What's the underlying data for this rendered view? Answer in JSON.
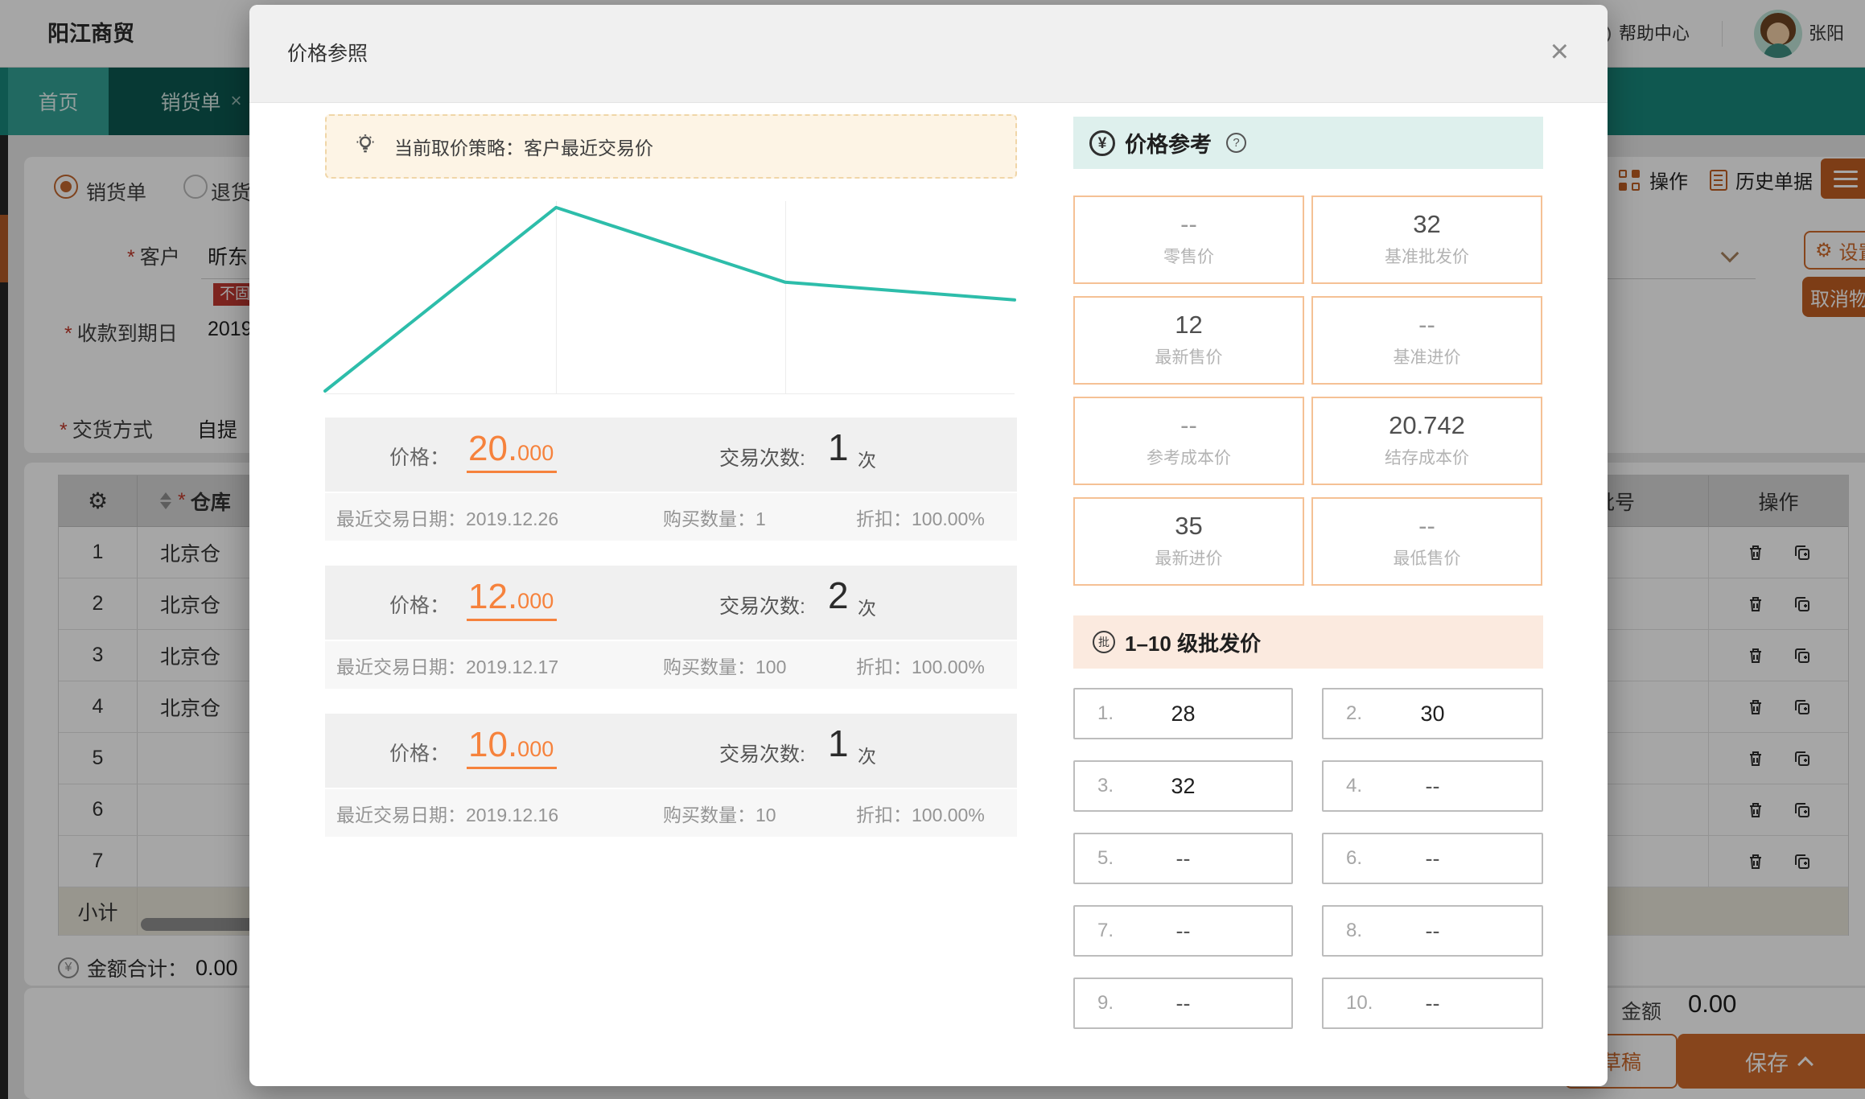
{
  "colors": {
    "brand_teal": "#17887b",
    "accent_orange": "#cf6a2c",
    "price_orange": "#f6823c",
    "chart_teal": "#2dbdaa",
    "ref_card_border": "#f5c195"
  },
  "app": {
    "brand": "阳江商贸",
    "topbar": {
      "help": "帮助中心",
      "user": "张阳"
    },
    "tabs": [
      {
        "label": "首页"
      },
      {
        "label": "销货单",
        "close": "×"
      }
    ],
    "toolbar": {
      "ops": "操作",
      "history": "历史单据",
      "settings_icon": "⚙",
      "settings": "设置",
      "cancel_logistics": "取消物流"
    },
    "form": {
      "radio_sale": "销货单",
      "radio_return": "退货单",
      "customer_label": "客户",
      "customer_value": "昕东贸",
      "price_tag": "不固定",
      "due_label": "收款到期日",
      "due_value": "2019",
      "delivery_label": "交货方式",
      "delivery_value": "自提"
    },
    "table": {
      "gear_icon": "⚙",
      "warehouse_header": "仓库",
      "batch_header": "批号",
      "ops_header": "操作",
      "rows": [
        {
          "n": "1",
          "wh": "北京仓"
        },
        {
          "n": "2",
          "wh": "北京仓"
        },
        {
          "n": "3",
          "wh": "北京仓"
        },
        {
          "n": "4",
          "wh": "北京仓"
        },
        {
          "n": "5",
          "wh": ""
        },
        {
          "n": "6",
          "wh": ""
        },
        {
          "n": "7",
          "wh": ""
        }
      ],
      "subtotal": "小计",
      "total_label": "金额合计：",
      "total_value": "0.00",
      "yen": "¥"
    },
    "footer": {
      "amount_label": "金额",
      "amount_value": "0.00",
      "draft": "草稿",
      "save": "保存"
    }
  },
  "modal": {
    "title": "价格参照",
    "close": "×",
    "strategy": "当前取价策略：客户最近交易价",
    "deals": [
      {
        "price_label": "价格：",
        "int": "20.",
        "dec": "000",
        "count_label": "交易次数:",
        "count": "1",
        "unit": "次",
        "date_label": "最近交易日期：",
        "date": "2019.12.26",
        "qty_label": "购买数量：",
        "qty": "1",
        "disc_label": "折扣：",
        "disc": "100.00%"
      },
      {
        "price_label": "价格：",
        "int": "12.",
        "dec": "000",
        "count_label": "交易次数:",
        "count": "2",
        "unit": "次",
        "date_label": "最近交易日期：",
        "date": "2019.12.17",
        "qty_label": "购买数量：",
        "qty": "100",
        "disc_label": "折扣：",
        "disc": "100.00%"
      },
      {
        "price_label": "价格：",
        "int": "10.",
        "dec": "000",
        "count_label": "交易次数:",
        "count": "1",
        "unit": "次",
        "date_label": "最近交易日期：",
        "date": "2019.12.16",
        "qty_label": "购买数量：",
        "qty": "10",
        "disc_label": "折扣：",
        "disc": "100.00%"
      }
    ],
    "ref": {
      "yen": "¥",
      "title": "价格参考",
      "help": "?",
      "cards": [
        {
          "value": "--",
          "label": "零售价"
        },
        {
          "value": "32",
          "label": "基准批发价"
        },
        {
          "value": "12",
          "label": "最新售价"
        },
        {
          "value": "--",
          "label": "基准进价"
        },
        {
          "value": "--",
          "label": "参考成本价"
        },
        {
          "value": "20.742",
          "label": "结存成本价"
        },
        {
          "value": "35",
          "label": "最新进价"
        },
        {
          "value": "--",
          "label": "最低售价"
        }
      ]
    },
    "wholesale": {
      "icon": "批",
      "title": "1–10 级批发价",
      "items": [
        {
          "n": "1.",
          "v": "28"
        },
        {
          "n": "2.",
          "v": "30"
        },
        {
          "n": "3.",
          "v": "32"
        },
        {
          "n": "4.",
          "v": "--"
        },
        {
          "n": "5.",
          "v": "--"
        },
        {
          "n": "6.",
          "v": "--"
        },
        {
          "n": "7.",
          "v": "--"
        },
        {
          "n": "8.",
          "v": "--"
        },
        {
          "n": "9.",
          "v": "--"
        },
        {
          "n": "10.",
          "v": "--"
        }
      ]
    }
  },
  "chart_data": {
    "type": "line",
    "title": "",
    "note": "unlabeled price-trend sparkline of recent customer transaction prices (10, 12, 20 range), no axes or tick labels shown",
    "color": "#2dbdaa",
    "grid": "two vertical gridlines at 1/3 and 2/3",
    "series": [
      {
        "name": "客户最近交易价",
        "points": [
          {
            "x": 0.0,
            "y": 1.0
          },
          {
            "x": 0.335,
            "y": 0.017
          },
          {
            "x": 0.667,
            "y": 0.417
          },
          {
            "x": 1.0,
            "y": 0.512
          }
        ]
      }
    ]
  }
}
